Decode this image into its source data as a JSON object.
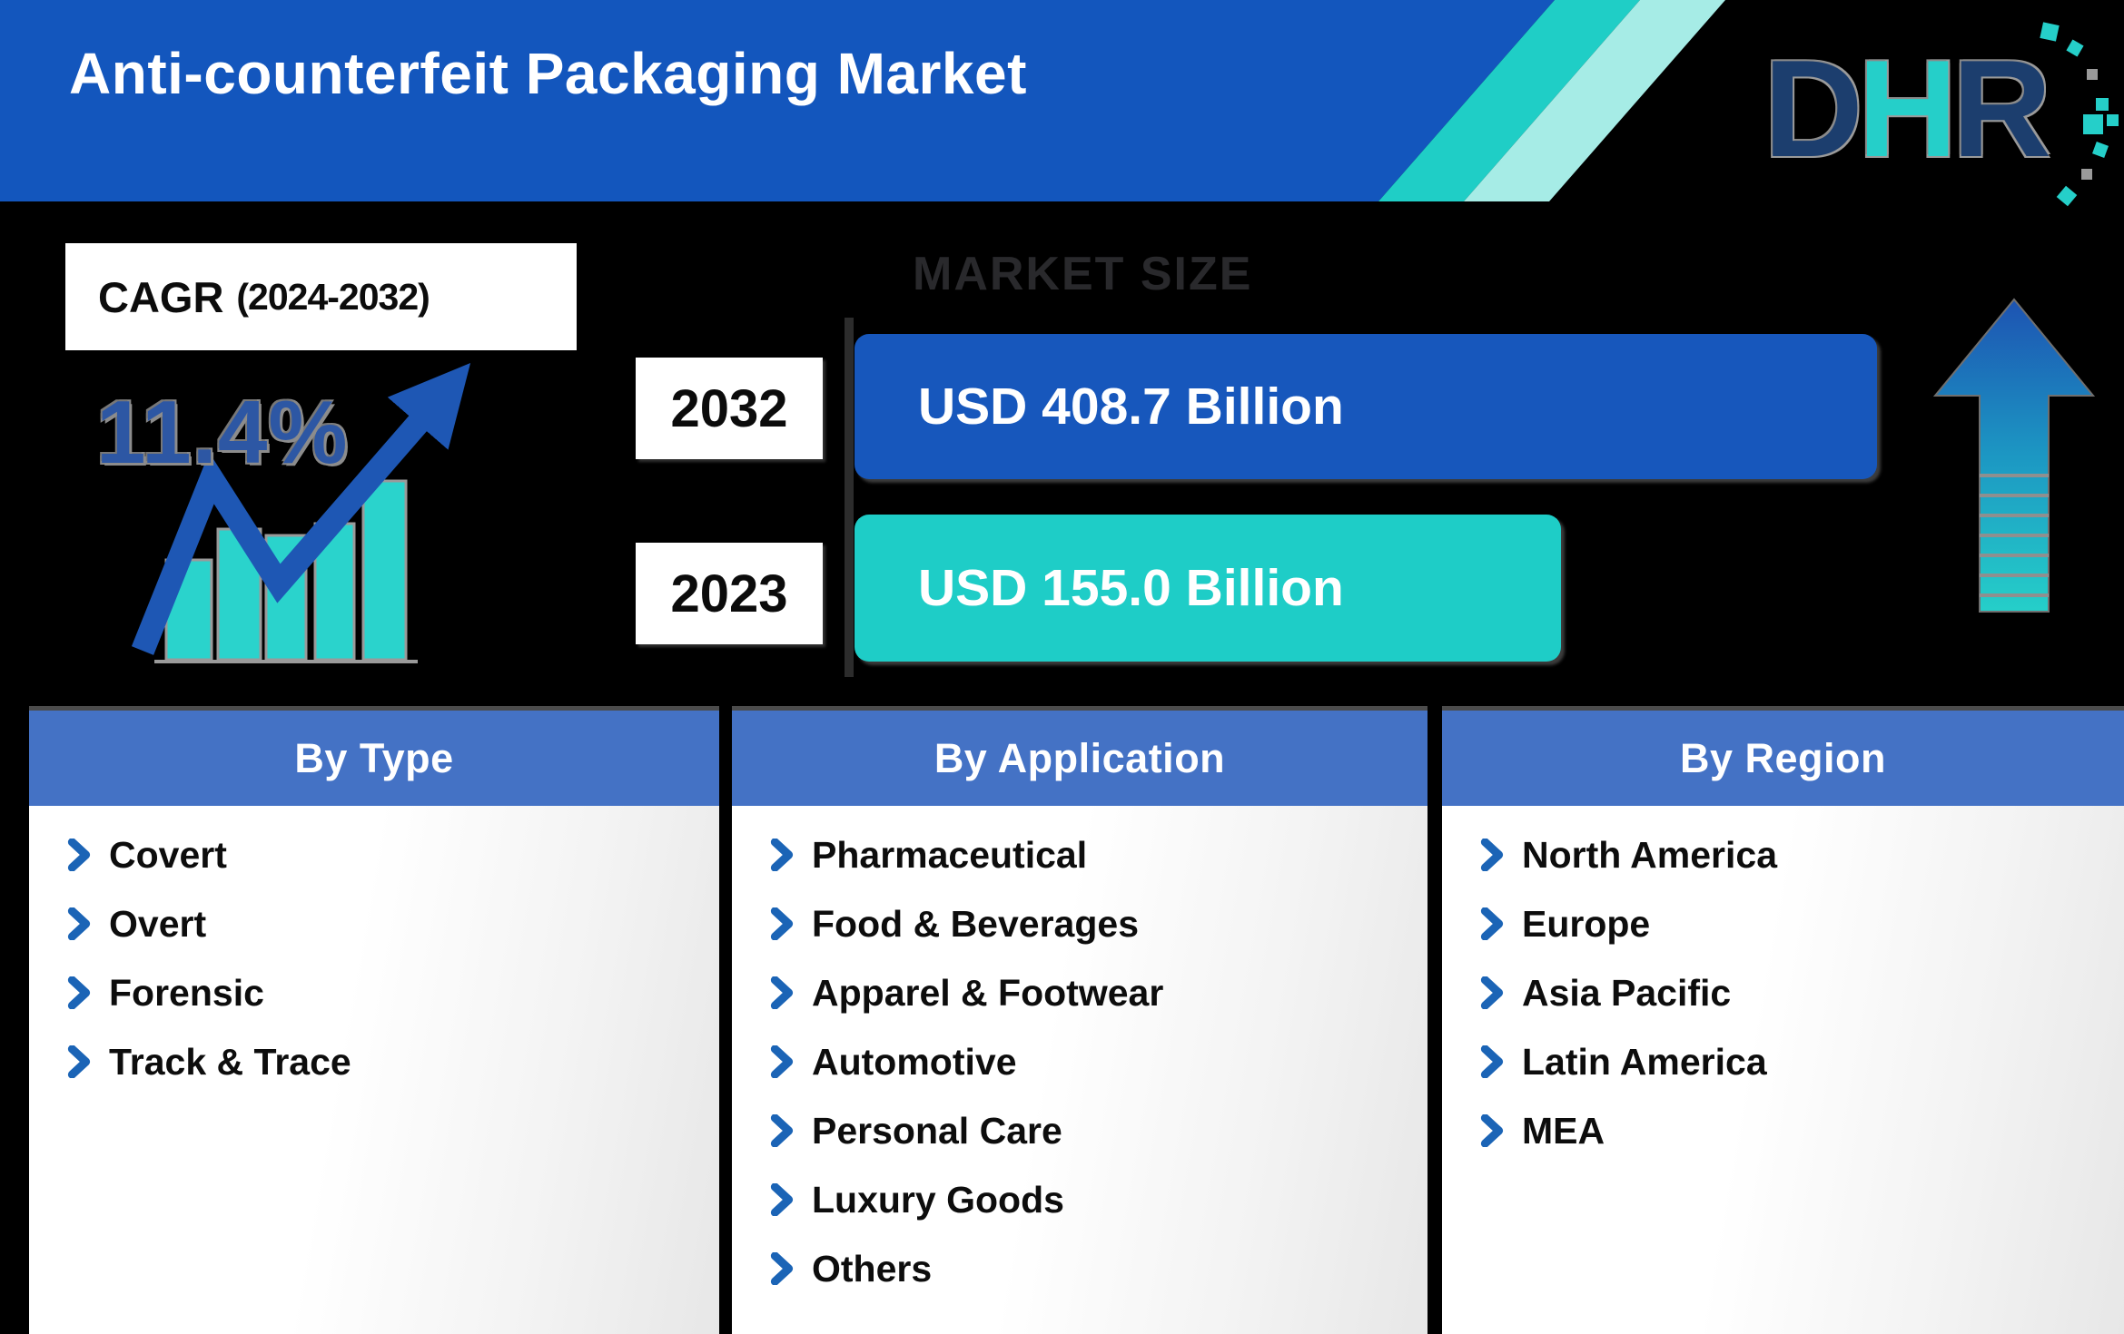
{
  "header": {
    "title": "Anti-counterfeit Packaging Market",
    "logo": {
      "d": "D",
      "h": "H",
      "r": "R"
    }
  },
  "hero": {
    "cagr_label": "CAGR",
    "cagr_period": "(2024-2032)",
    "cagr_value": "11.4%",
    "market_size_title": "MARKET SIZE"
  },
  "chart_data": {
    "type": "bar",
    "title": "MARKET SIZE",
    "unit": "USD Billion",
    "orientation": "horizontal",
    "cagr": {
      "value_percent": 11.4,
      "period": "2024-2032"
    },
    "categories": [
      "2032",
      "2023"
    ],
    "values": [
      408.7,
      155.0
    ],
    "series": [
      {
        "year": "2032",
        "label": "USD 408.7 Billion",
        "value": 408.7,
        "color": "#1757BC"
      },
      {
        "year": "2023",
        "label": "USD 155.0 Billion",
        "value": 155.0,
        "color": "#1ECDC7"
      }
    ]
  },
  "columns": [
    {
      "header": "By Type",
      "items": [
        "Covert",
        "Overt",
        "Forensic",
        "Track & Trace"
      ]
    },
    {
      "header": "By Application",
      "items": [
        "Pharmaceutical",
        "Food & Beverages",
        "Apparel & Footwear",
        "Automotive",
        "Personal Care",
        "Luxury Goods",
        "Others"
      ]
    },
    {
      "header": "By Region",
      "items": [
        "North America",
        "Europe",
        "Asia Pacific",
        "Latin America",
        "MEA"
      ]
    }
  ],
  "colors": {
    "header_blue": "#1356BD",
    "column_header_blue": "#4472C5",
    "bar_blue": "#1757BC",
    "teal": "#1ECDC7",
    "light_teal": "#A6ECE6",
    "logo_navy": "#1C3E6E",
    "cagr_blue": "#2D57A4",
    "chevron_blue": "#1B64B6",
    "background": "#000000"
  }
}
